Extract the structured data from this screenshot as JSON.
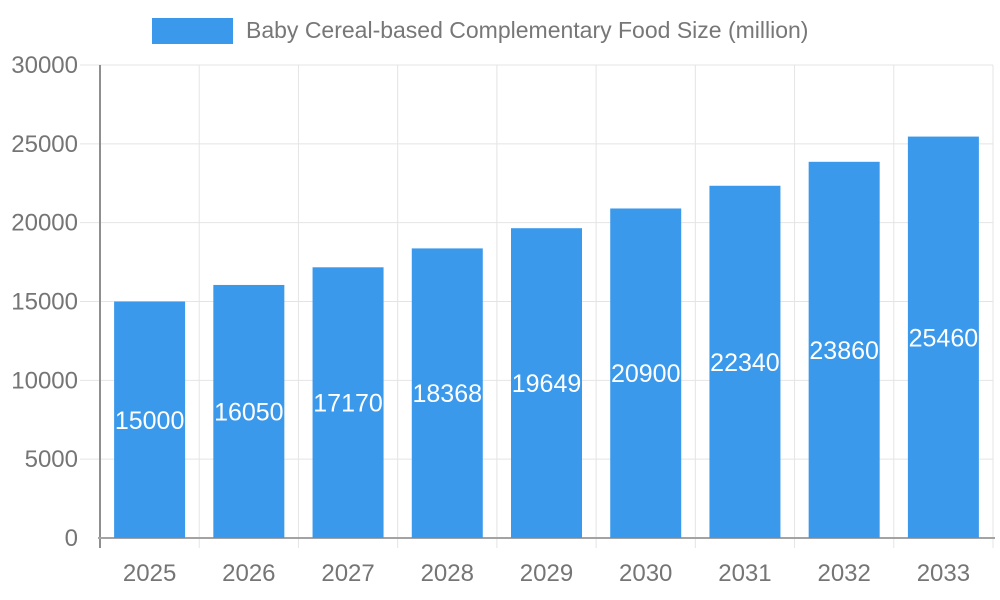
{
  "legend": {
    "label": "Baby Cereal-based Complementary Food Size (million)",
    "swatch_color": "#3b99ec"
  },
  "chart_data": {
    "type": "bar",
    "title": "Baby Cereal-based Complementary Food Size (million)",
    "categories": [
      "2025",
      "2026",
      "2027",
      "2028",
      "2029",
      "2030",
      "2031",
      "2032",
      "2033"
    ],
    "values": [
      15000,
      16050,
      17170,
      18368,
      19649,
      20900,
      22340,
      23860,
      25460
    ],
    "xlabel": "",
    "ylabel": "",
    "ylim": [
      0,
      30000
    ],
    "ytick_step": 5000,
    "ytick_labels": [
      "0",
      "5000",
      "10000",
      "15000",
      "20000",
      "25000",
      "30000"
    ],
    "grid": true,
    "legend_position": "top",
    "bar_color": "#3b99ec",
    "value_label_color": "#ffffff",
    "axis_text_color": "#757575",
    "gridline_color": "#e4e4e4",
    "y_axis_line_color": "#8f8f8f",
    "x_axis_line_color": "#a3a3a3"
  }
}
